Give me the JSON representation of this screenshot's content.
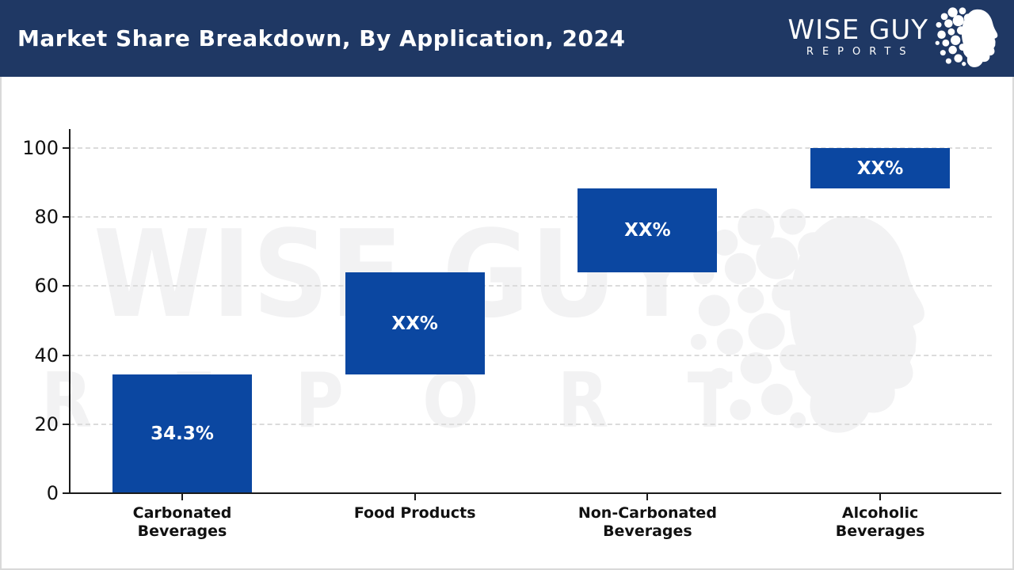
{
  "header": {
    "title": "Market Share Breakdown, By Application, 2024",
    "logo": {
      "main": "WISE GUY",
      "sub": "REPORTS"
    }
  },
  "watermark": {
    "main": "WISE GUY",
    "sub": "REPORTS"
  },
  "colors": {
    "header_bg": "#1f3864",
    "bar": "#0b47a1",
    "grid": "#dbdbdb",
    "axis": "#1a1a1a",
    "bar_label": "#ffffff",
    "watermark": "#f2f2f3",
    "frame_border": "#d9d9d9"
  },
  "chart_data": {
    "type": "bar",
    "subtype": "waterfall",
    "title": "Market Share Breakdown, By Application, 2024",
    "categories": [
      "Carbonated Beverages",
      "Food Products",
      "Non-Carbonated Beverages",
      "Alcoholic Beverages"
    ],
    "categories_lines": [
      [
        "Carbonated",
        "Beverages"
      ],
      [
        "Food Products"
      ],
      [
        "Non-Carbonated",
        "Beverages"
      ],
      [
        "Alcoholic",
        "Beverages"
      ]
    ],
    "segments": [
      {
        "category": "Carbonated Beverages",
        "start": 0,
        "end": 34.3,
        "value_label": "34.3%"
      },
      {
        "category": "Food Products",
        "start": 34.3,
        "end": 63.9,
        "value_label": "XX%"
      },
      {
        "category": "Non-Carbonated Beverages",
        "start": 63.9,
        "end": 88.2,
        "value_label": "XX%"
      },
      {
        "category": "Alcoholic Beverages",
        "start": 88.2,
        "end": 100,
        "value_label": "XX%"
      }
    ],
    "ylim": [
      0,
      100
    ],
    "yticks": [
      0,
      20,
      40,
      60,
      80,
      100
    ],
    "xlabel": "",
    "ylabel": "",
    "grid": "horizontal-dashed",
    "legend": "none"
  }
}
